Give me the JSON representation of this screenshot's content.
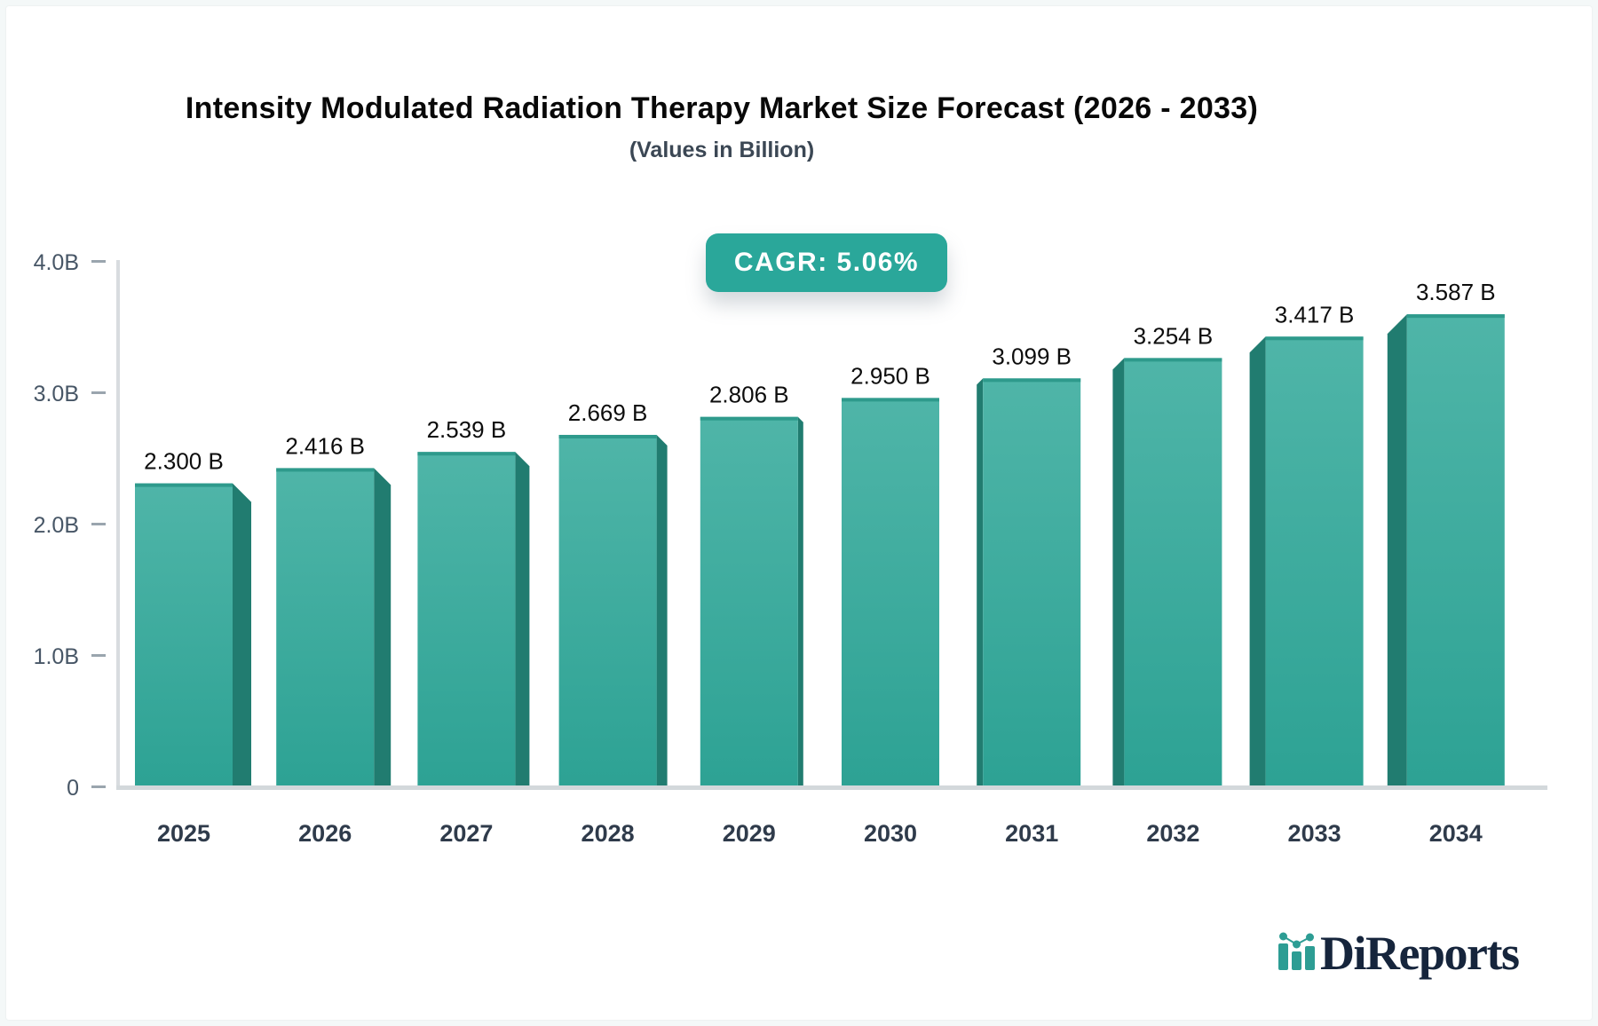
{
  "header": {
    "title": "Intensity Modulated Radiation Therapy Market Size Forecast (2026 - 2033)",
    "subtitle": "(Values in Billion)"
  },
  "badge": {
    "label": "CAGR: 5.06%"
  },
  "logo": {
    "text": "DiReports",
    "icon": "mini-bar-line-chart-icon"
  },
  "colors": {
    "accent_teal": "#2aa79a",
    "bar_face_top": "#4fb5a8",
    "bar_face_bottom": "#2da294",
    "bar_top_edge": "#2e9a8c",
    "bar_side": "#217c70",
    "axis_line": "#d8dcdf",
    "baseline": "#d3d8db",
    "tick_dash": "#9aa5ae",
    "ytick_text": "#475666",
    "xtick_text": "#2f3b4b",
    "value_text": "#0d0d0d",
    "logo_navy": "#16253c",
    "logo_teal": "#2d9d94"
  },
  "chart_data": {
    "type": "bar",
    "title": "Intensity Modulated Radiation Therapy Market Size Forecast (2026 - 2033)",
    "subtitle": "(Values in Billion)",
    "annotation": "CAGR: 5.06%",
    "categories": [
      "2025",
      "2026",
      "2027",
      "2028",
      "2029",
      "2030",
      "2031",
      "2032",
      "2033",
      "2034"
    ],
    "values": [
      2.3,
      2.416,
      2.539,
      2.669,
      2.806,
      2.95,
      3.099,
      3.254,
      3.417,
      3.587
    ],
    "value_labels": [
      "2.300 B",
      "2.416 B",
      "2.539 B",
      "2.669 B",
      "2.806 B",
      "2.950 B",
      "3.099 B",
      "3.254 B",
      "3.417 B",
      "3.587 B"
    ],
    "unit": "Billion",
    "xlabel": "",
    "ylabel": "",
    "ylim": [
      0,
      4
    ],
    "yticks": {
      "values": [
        0,
        1,
        2,
        3,
        4
      ],
      "labels": [
        "0",
        "1.0B",
        "2.0B",
        "3.0B",
        "4.0B"
      ]
    },
    "grid": false,
    "legend": false,
    "bar_style": "3d-beveled-teal"
  }
}
